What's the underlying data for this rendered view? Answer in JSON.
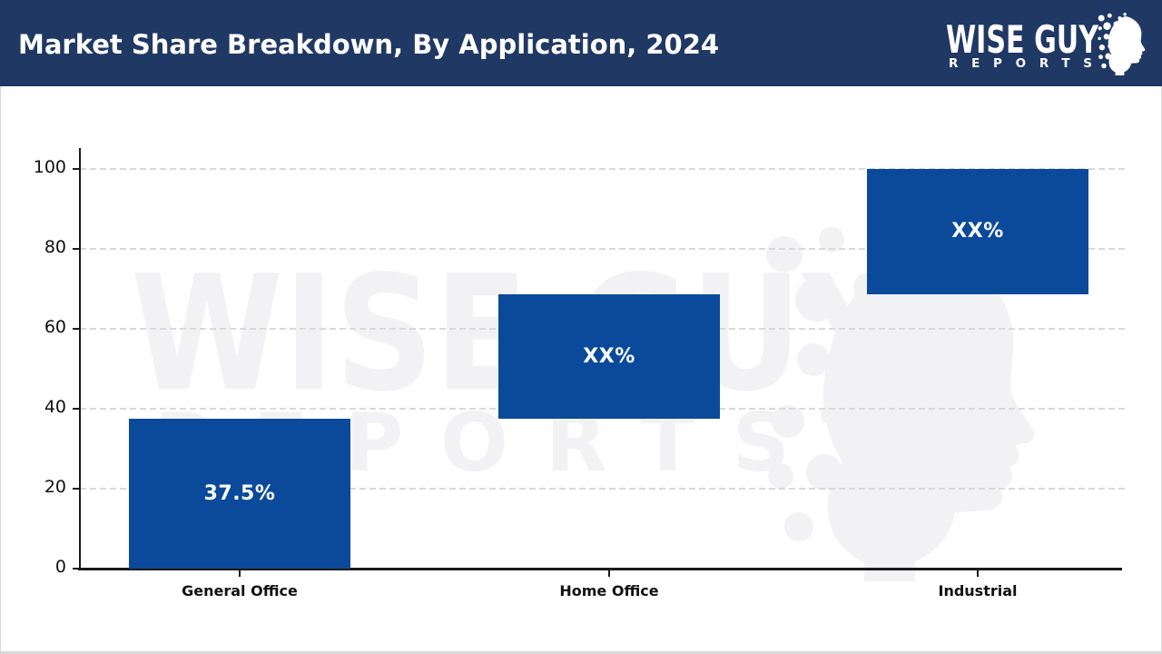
{
  "header": {
    "title": "Market Share Breakdown, By Application, 2024",
    "logo": {
      "name": "WISE GUY",
      "sub": "REPORTS"
    }
  },
  "watermark": {
    "name": "WISE GUY",
    "sub": "REPORTS"
  },
  "chart_data": {
    "type": "bar",
    "variant": "stacked-waterfall",
    "title": "Market Share Breakdown, By Application, 2024",
    "categories": [
      "General Office",
      "Home Office",
      "Industrial"
    ],
    "segments": [
      {
        "category": "General Office",
        "start": 0,
        "end": 37.5,
        "label": "37.5%"
      },
      {
        "category": "Home Office",
        "start": 37.5,
        "end": 68.75,
        "label": "XX%"
      },
      {
        "category": "Industrial",
        "start": 68.75,
        "end": 100,
        "label": "XX%"
      }
    ],
    "y_ticks": [
      0,
      20,
      40,
      60,
      80,
      100
    ],
    "ylim": [
      0,
      105
    ],
    "grid": "dashed-horizontal",
    "legend": "none",
    "colors": {
      "bar": "#0B4A9B",
      "header_bg": "#1F3864",
      "grid": "#D9D9D9",
      "axis": "#1A1A1A",
      "watermark": "#F2F2F4"
    }
  }
}
